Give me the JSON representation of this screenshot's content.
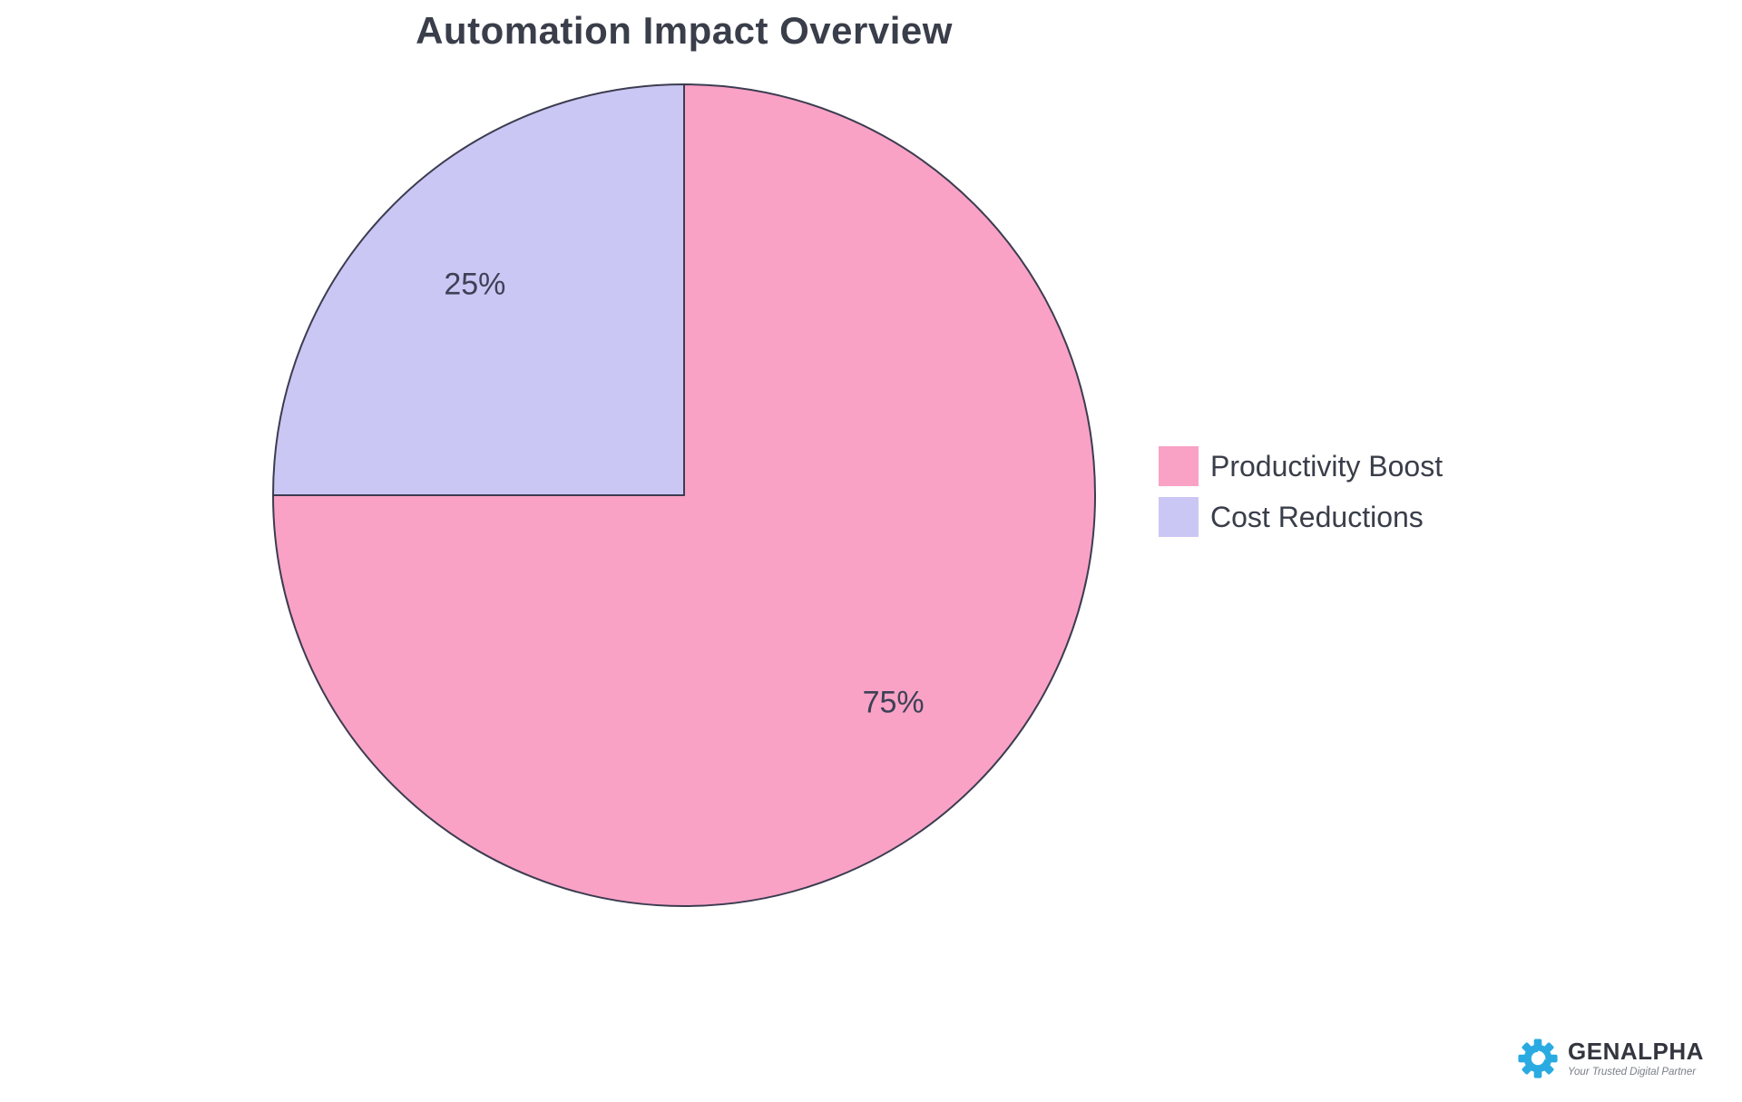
{
  "chart_data": {
    "type": "pie",
    "title": "Automation Impact Overview",
    "labels": [
      "Productivity Boost",
      "Cost Reductions"
    ],
    "values": [
      75,
      25
    ],
    "slice_labels": [
      "75%",
      "25%"
    ],
    "colors": [
      "#F9A2C6",
      "#CBC7F4"
    ],
    "stroke_color": "#3C3C50",
    "label_color": "#3D4156",
    "start_angle_deg": -90,
    "direction": "clockwise",
    "legend_position": "right",
    "background": "#FFFFFF"
  },
  "branding": {
    "name": "GENALPHA",
    "tagline": "Your Trusted Digital Partner",
    "logo_color": "#29ABE2"
  }
}
